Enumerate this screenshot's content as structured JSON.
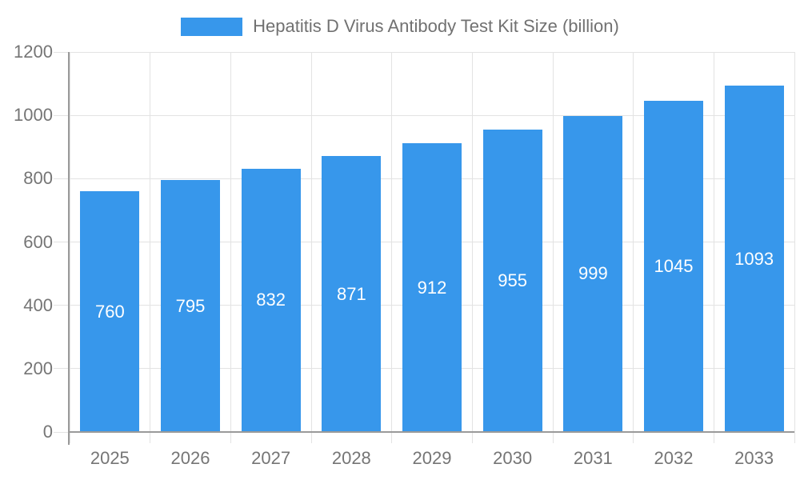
{
  "legend": {
    "label": "Hepatitis D Virus Antibody Test Kit Size (billion)"
  },
  "chart_data": {
    "type": "bar",
    "title": "Hepatitis D Virus Antibody Test Kit Size (billion)",
    "categories": [
      "2025",
      "2026",
      "2027",
      "2028",
      "2029",
      "2030",
      "2031",
      "2032",
      "2033"
    ],
    "values": [
      760,
      795,
      832,
      871,
      912,
      955,
      999,
      1045,
      1093
    ],
    "xlabel": "",
    "ylabel": "",
    "ylim": [
      0,
      1200
    ],
    "yticks": [
      0,
      200,
      400,
      600,
      800,
      1000,
      1200
    ],
    "grid": true,
    "legend_position": "top",
    "value_labels_position": "inside-center"
  },
  "colors": {
    "bar": "#3797EB",
    "value_label": "#FFFFFF",
    "axis_line": "#9A9A9A",
    "gridline": "#E3E3E3",
    "axis_text": "#757575",
    "legend_text": "#717171",
    "background": "#FFFFFF"
  }
}
